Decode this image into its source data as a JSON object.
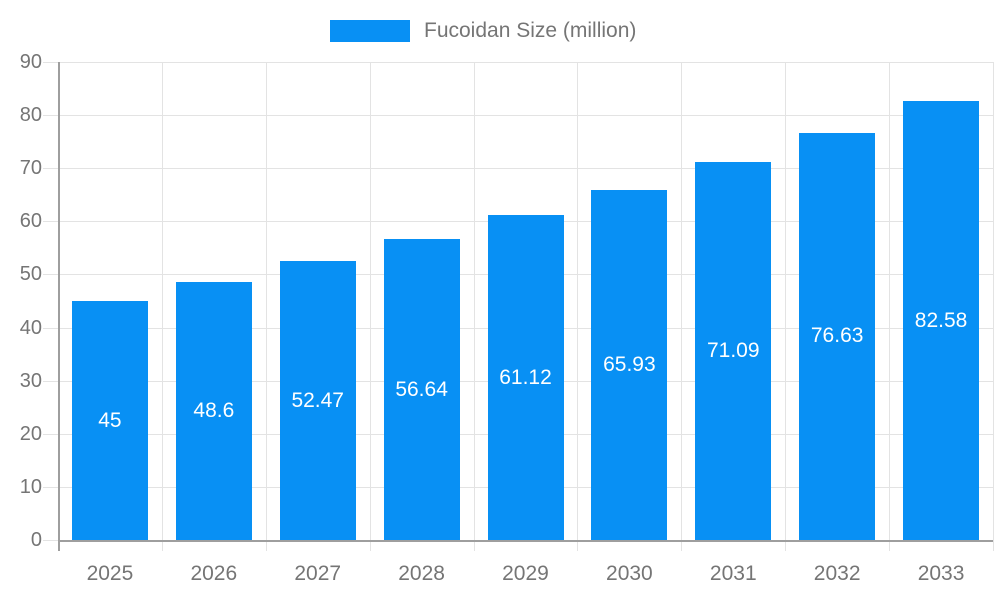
{
  "chart_data": {
    "type": "bar",
    "title": "Fucoidan Size (million)",
    "categories": [
      "2025",
      "2026",
      "2027",
      "2028",
      "2029",
      "2030",
      "2031",
      "2032",
      "2033"
    ],
    "values": [
      45,
      48.6,
      52.47,
      56.64,
      61.12,
      65.93,
      71.09,
      76.63,
      82.58
    ],
    "xlabel": "",
    "ylabel": "",
    "ylim": [
      0,
      90
    ],
    "y_ticks": [
      0,
      10,
      20,
      30,
      40,
      50,
      60,
      70,
      80,
      90
    ],
    "grid": true,
    "legend_position": "top-center"
  },
  "legend": {
    "series_label": "Fucoidan Size (million)"
  },
  "colors": {
    "bar": "#0890f4",
    "grid": "#e3e3e3",
    "axis_line": "#9e9e9e",
    "axis_text": "#757575",
    "bar_label": "#ffffff",
    "background": "#ffffff"
  }
}
